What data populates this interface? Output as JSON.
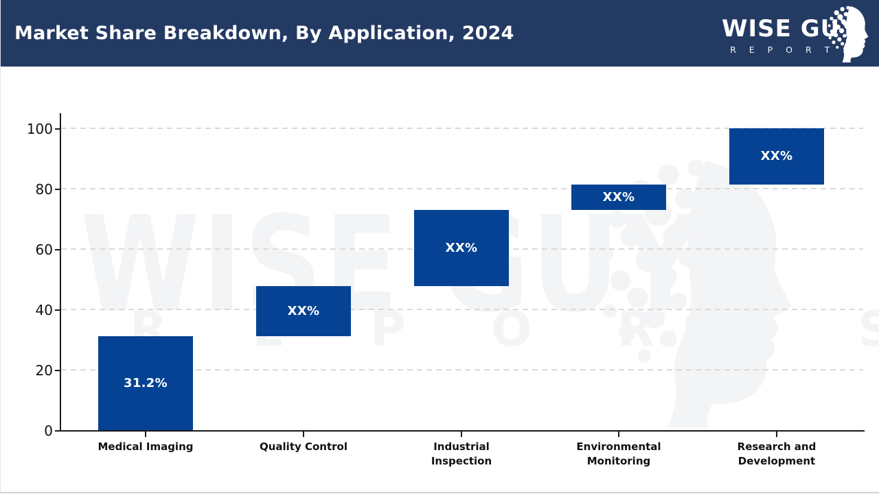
{
  "header": {
    "title": "Market Share Breakdown, By Application, 2024",
    "logo": {
      "icon": "dotted-head-profile-icon",
      "brand_top": "WISE GUY",
      "brand_bottom": "R E P O R T S"
    }
  },
  "watermark": {
    "line1": "WISE GUY",
    "line2": "R E P O R T S",
    "icon": "dotted-head-profile-watermark"
  },
  "chart_data": {
    "type": "bar",
    "subtype": "waterfall",
    "title": "Market Share Breakdown, By Application, 2024",
    "xlabel": "",
    "ylabel": "",
    "ylim": [
      0,
      100
    ],
    "yticks": [
      0,
      20,
      40,
      60,
      80,
      100
    ],
    "grid": "horizontal-dashed",
    "legend": "none",
    "categories": [
      [
        "Medical Imaging"
      ],
      [
        "Quality Control"
      ],
      [
        "Industrial",
        "Inspection"
      ],
      [
        "Environmental",
        "Monitoring"
      ],
      [
        "Research and",
        "Development"
      ]
    ],
    "segments": [
      {
        "category": "Medical Imaging",
        "start": 0,
        "end": 31.2,
        "value_label": "31.2%"
      },
      {
        "category": "Quality Control",
        "start": 31.2,
        "end": 47.7,
        "value_label": "XX%"
      },
      {
        "category": "Industrial Inspection",
        "start": 47.7,
        "end": 73.0,
        "value_label": "XX%"
      },
      {
        "category": "Environmental Monitoring",
        "start": 73.0,
        "end": 81.4,
        "value_label": "XX%"
      },
      {
        "category": "Research and Development",
        "start": 81.4,
        "end": 100.0,
        "value_label": "XX%"
      }
    ]
  },
  "colors": {
    "header_bg": "#233a63",
    "bar_blue": "#064293",
    "gridline": "#d9d9d9",
    "axis": "#1a1a1a",
    "watermark": "#f3f4f6",
    "text": "#111111"
  }
}
